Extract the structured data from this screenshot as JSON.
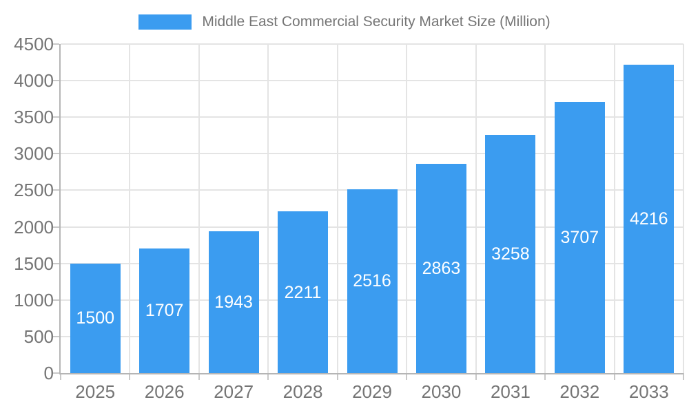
{
  "chart_data": {
    "type": "bar",
    "title": "Middle East Commercial Security Market Size (Million)",
    "legend_position": "top-center",
    "categories": [
      "2025",
      "2026",
      "2027",
      "2028",
      "2029",
      "2030",
      "2031",
      "2032",
      "2033"
    ],
    "series": [
      {
        "name": "Middle East Commercial Security Market Size (Million)",
        "values": [
          1500,
          1707,
          1943,
          2211,
          2516,
          2863,
          3258,
          3707,
          4216
        ]
      }
    ],
    "xlabel": "",
    "ylabel": "",
    "ylim": [
      0,
      4500
    ],
    "yticks": [
      0,
      500,
      1000,
      1500,
      2000,
      2500,
      3000,
      3500,
      4000,
      4500
    ],
    "grid": true,
    "value_labels_position": "inside-center",
    "colors": {
      "bar": "#3B9CF0",
      "axis_text": "#757575",
      "value_label_text": "#FFFFFF",
      "gridline": "#E4E4E4",
      "axis_line": "#B5B5B5",
      "tick_mark": "#C9C9C9",
      "background": "#FFFFFF"
    }
  }
}
